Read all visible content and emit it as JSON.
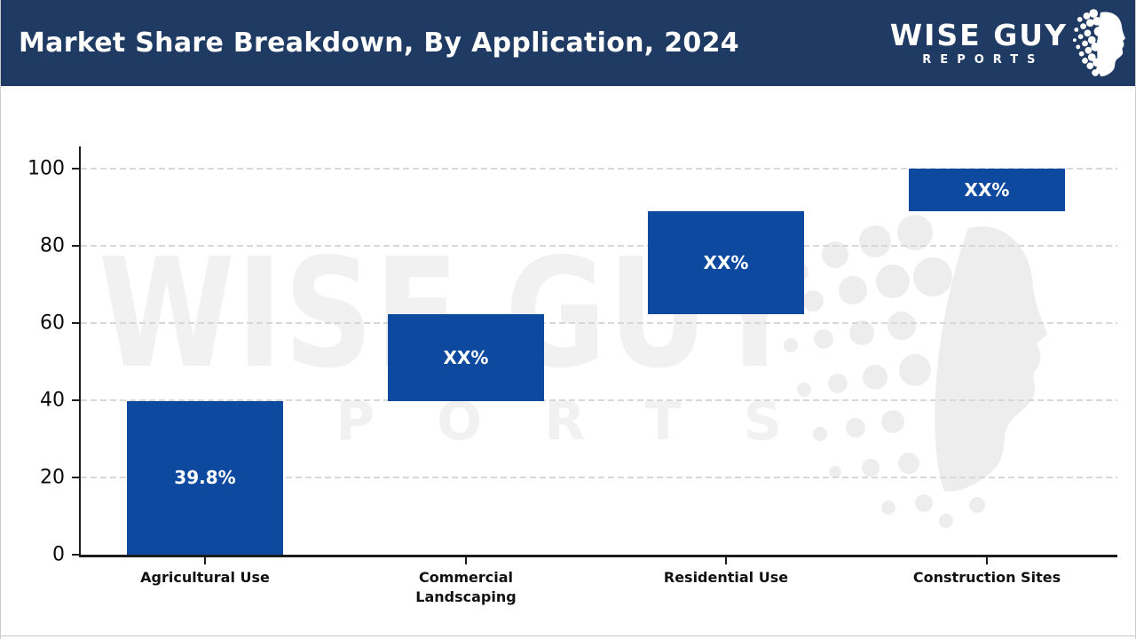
{
  "header": {
    "title": "Market Share Breakdown, By Application, 2024",
    "logo": {
      "line1": "WISE GUY",
      "line2": "REPORTS"
    }
  },
  "watermark": {
    "line1": "WISE GUY",
    "line2": "REPORTS"
  },
  "chart_data": {
    "type": "bar",
    "subtype": "waterfall",
    "title": "Market Share Breakdown, By Application, 2024",
    "categories": [
      "Agricultural Use",
      "Commercial Landscaping",
      "Residential Use",
      "Construction Sites"
    ],
    "segments": [
      {
        "category": "Agricultural Use",
        "label_lines": [
          "Agricultural Use"
        ],
        "start": 0,
        "end": 39.8,
        "value_label": "39.8%"
      },
      {
        "category": "Commercial Landscaping",
        "label_lines": [
          "Commercial",
          "Landscaping"
        ],
        "start": 39.8,
        "end": 62.3,
        "value_label": "XX%"
      },
      {
        "category": "Residential Use",
        "label_lines": [
          "Residential Use"
        ],
        "start": 62.3,
        "end": 88.9,
        "value_label": "XX%"
      },
      {
        "category": "Construction Sites",
        "label_lines": [
          "Construction Sites"
        ],
        "start": 88.9,
        "end": 100,
        "value_label": "XX%"
      }
    ],
    "yticks": [
      0,
      20,
      40,
      60,
      80,
      100
    ],
    "ylim": [
      0,
      105.7
    ],
    "grid": "horizontal-dashed",
    "legend": "none",
    "bar_color": "#0d4a9f",
    "value_label_color": "#ffffff"
  },
  "colors": {
    "header_bg": "#1f3a63",
    "bar": "#0d4a9f",
    "grid": "#d8d8d8",
    "axis": "#1c1c1c",
    "watermark": "#f1f1f1",
    "title_text": "#ffffff"
  }
}
